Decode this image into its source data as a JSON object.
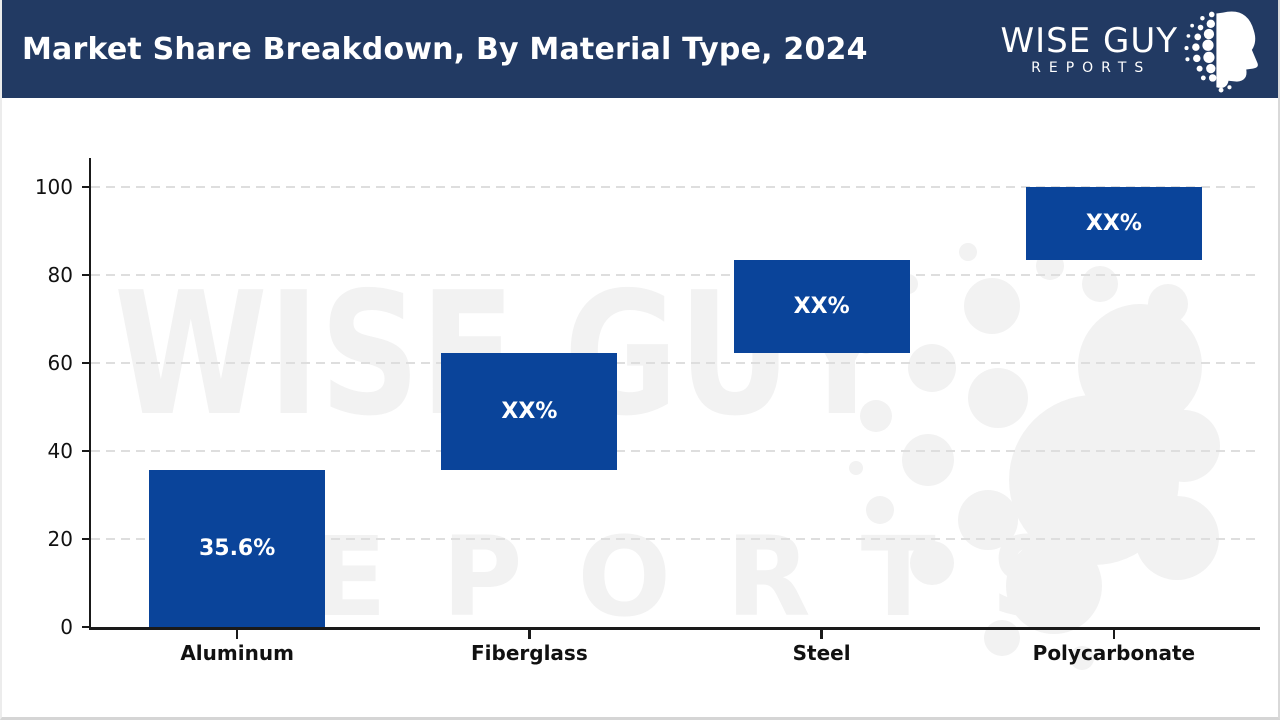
{
  "header": {
    "title": "Market Share Breakdown, By Material Type, 2024",
    "logo": {
      "brand": "WISE GUY",
      "sub": "REPORTS"
    }
  },
  "watermark": {
    "line1": "WISE GUY",
    "line2": "REPORTS"
  },
  "colors": {
    "header_bg": "#223a63",
    "bar_fill": "#0a449a",
    "bar_label": "#ffffff",
    "grid_line": "#dedede",
    "axis": "#1a1a1a",
    "watermark": "#f2f2f2"
  },
  "chart_data": {
    "type": "bar",
    "variant": "waterfall",
    "title": "Market Share Breakdown, By Material Type, 2024",
    "categories": [
      "Aluminum",
      "Fiberglass",
      "Steel",
      "Polycarbonate"
    ],
    "bars": [
      {
        "category": "Aluminum",
        "from": 0,
        "to": 35.6,
        "label": "35.6%"
      },
      {
        "category": "Fiberglass",
        "from": 35.7,
        "to": 62.3,
        "label": "XX%"
      },
      {
        "category": "Steel",
        "from": 62.3,
        "to": 83.3,
        "label": "XX%"
      },
      {
        "category": "Polycarbonate",
        "from": 83.3,
        "to": 100,
        "label": "XX%"
      }
    ],
    "yticks": [
      0,
      20,
      40,
      60,
      80,
      100
    ],
    "ylim": [
      0,
      106
    ],
    "xlabel": "",
    "ylabel": "",
    "grid": "horizontal-dashed",
    "legend": "none"
  }
}
